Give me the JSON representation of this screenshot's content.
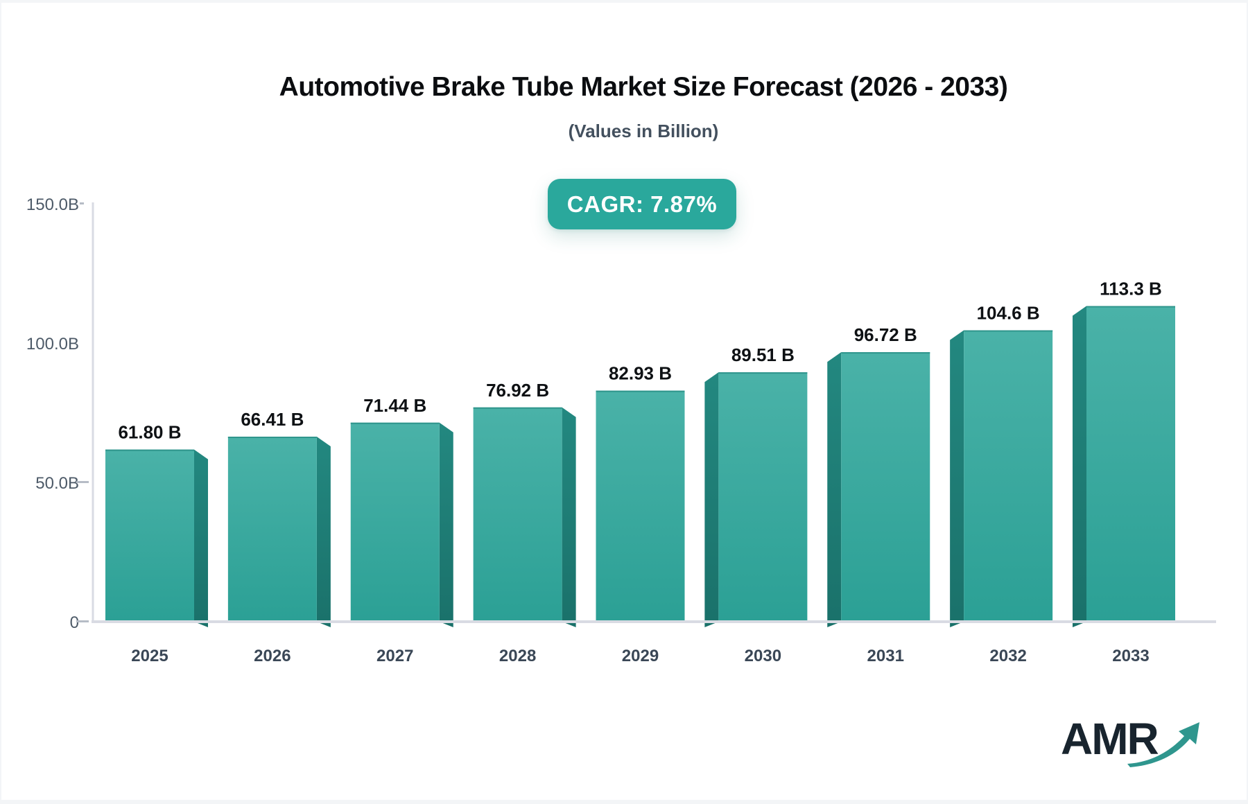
{
  "header": {
    "title": "Automotive Brake Tube Market Size Forecast (2026 - 2033)",
    "subtitle": "(Values in Billion)",
    "cagr_label": "CAGR: 7.87%"
  },
  "logo": {
    "text": "AMR"
  },
  "chart_data": {
    "type": "bar",
    "title": "Automotive Brake Tube Market Size Forecast (2026 - 2033)",
    "subtitle": "(Values in Billion)",
    "cagr": "7.87%",
    "categories": [
      "2025",
      "2026",
      "2027",
      "2028",
      "2029",
      "2030",
      "2031",
      "2032",
      "2033"
    ],
    "values": [
      61.8,
      66.41,
      71.44,
      76.92,
      82.93,
      89.51,
      96.72,
      104.6,
      113.3
    ],
    "value_labels": [
      "61.80 B",
      "66.41 B",
      "71.44 B",
      "76.92 B",
      "82.93 B",
      "89.51 B",
      "96.72 B",
      "104.6 B",
      "113.3 B"
    ],
    "ylim": [
      0,
      150
    ],
    "y_ticks": [
      {
        "label": "150.0B",
        "value": 150
      },
      {
        "label": "100.0B",
        "value": 100
      },
      {
        "label": "50.0B",
        "value": 50
      },
      {
        "label": "0",
        "value": 0
      }
    ],
    "grid": false,
    "legend": "none",
    "colors": {
      "accent": "#2aa89c",
      "bar_front_top": "#4ab2a8",
      "bar_front_bottom": "#2ba095",
      "bar_top_edge": "#2f958c",
      "bar_side_top": "#238880",
      "bar_side_bottom": "#1a716a",
      "axis_line": "#d9dbe3",
      "tick_dash": "#b6bcc6",
      "y_label_text": "#4d5a68",
      "x_label_text": "#3a4756",
      "value_label_text": "#0e1114",
      "logo_navy": "#18242e",
      "logo_arrow": "#2f968e"
    }
  }
}
